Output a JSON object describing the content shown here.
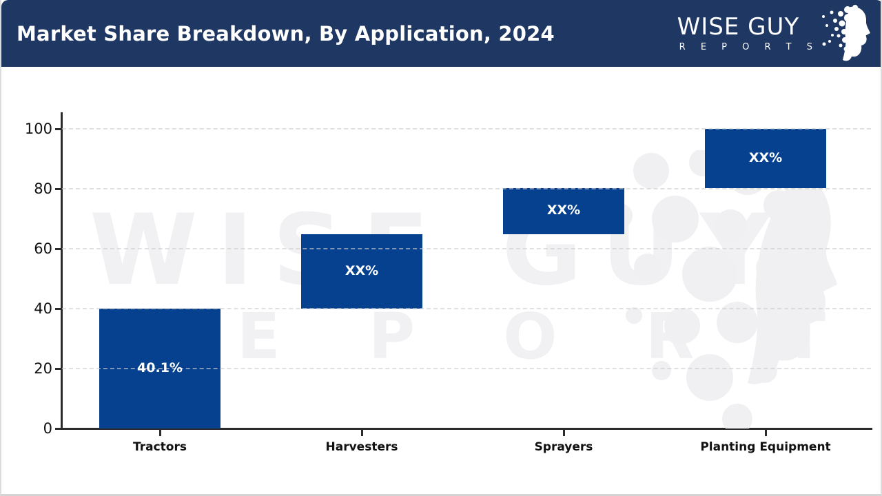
{
  "header": {
    "title": "Market Share Breakdown, By Application, 2024",
    "bg_color": "#1f3763",
    "logo": {
      "line1": "WISE GUY",
      "line2": "R E P O R T S",
      "head_icon": "dotted-face-profile"
    }
  },
  "watermark": {
    "line1": "WISE GUY",
    "line2": "R E P O R T S",
    "color": "#f1f1f4"
  },
  "chart_data": {
    "type": "bar",
    "subtype": "floating-waterfall",
    "title": "Market Share Breakdown, By Application, 2024",
    "categories": [
      "Tractors",
      "Harvesters",
      "Sprayers",
      "Planting Equipment"
    ],
    "segments": [
      {
        "category": "Tractors",
        "start": 0,
        "end": 40.1,
        "label": "40.1%"
      },
      {
        "category": "Harvesters",
        "start": 40.1,
        "end": 64.9,
        "label": "XX%"
      },
      {
        "category": "Sprayers",
        "start": 64.9,
        "end": 80.3,
        "label": "XX%"
      },
      {
        "category": "Planting Equipment",
        "start": 80.3,
        "end": 100,
        "label": "XX%"
      }
    ],
    "yticks": [
      0,
      20,
      40,
      60,
      80,
      100
    ],
    "ylim": [
      0,
      105.5
    ],
    "xlabel": "",
    "ylabel": "",
    "bar_color": "#05418f",
    "grid": "horizontal-dashed",
    "gridline_color": "#e2e2e2",
    "legend": "none"
  }
}
